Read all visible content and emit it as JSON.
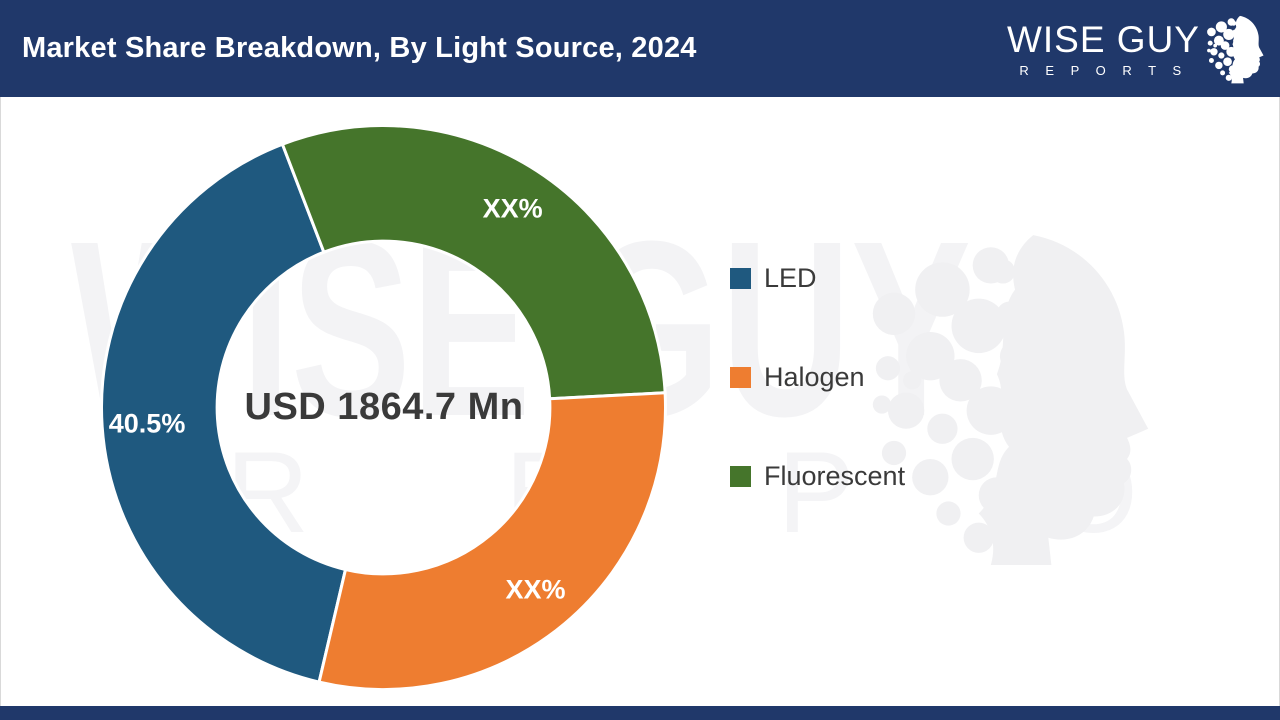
{
  "header": {
    "title": "Market Share Breakdown, By Light Source, 2024",
    "logo": {
      "line1": "WISE GUY",
      "line2": "R E P O R T S"
    },
    "bg_color": "#20386A"
  },
  "watermark": {
    "line1": "WISE GUY",
    "line2": "R E P O R T S"
  },
  "chart_data": {
    "type": "donut",
    "title": "Market Share Breakdown, By Light Source, 2024",
    "center_label": "USD 1864.7 Mn",
    "unit": "USD Mn",
    "total_value": 1864.7,
    "year": "2024",
    "slices": [
      {
        "label": "LED",
        "value": 40.5,
        "display_label": "40.5%",
        "color": "#1F597F"
      },
      {
        "label": "Halogen",
        "value": 29.5,
        "display_label": "XX%",
        "color": "#EE7D30"
      },
      {
        "label": "Fluorescent",
        "value": 30.0,
        "display_label": "XX%",
        "color": "#45752B"
      }
    ],
    "start_angle_deg": 193.2,
    "draw_order": [
      0,
      2,
      1
    ],
    "donut_hole_ratio": 0.59,
    "slice_gap_color": "#ffffff",
    "legend_position": "right",
    "legend": [
      "LED",
      "Halogen",
      "Fluorescent"
    ]
  },
  "footer": {
    "bg_color": "#20386A"
  }
}
